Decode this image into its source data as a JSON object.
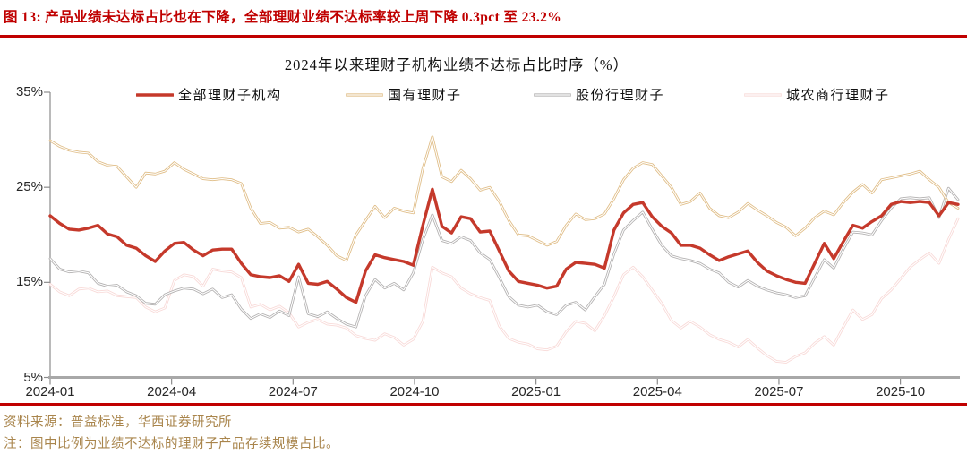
{
  "header": {
    "caption": "图 13:  产品业绩未达标占比也在下降，全部理财业绩不达标率较上周下降 0.3pct 至 23.2%"
  },
  "chart_data": {
    "type": "line",
    "title": "2024年以来理财子机构业绩不达标占比时序（%）",
    "x_tick_labels": [
      "2024-01",
      "2024-04",
      "2024-07",
      "2024-10",
      "2025-01",
      "2025-04",
      "2025-07",
      "2025-10"
    ],
    "y_tick_labels": [
      "35%",
      "25%",
      "15%",
      "5%"
    ],
    "y_tick_values": [
      35,
      25,
      15,
      5
    ],
    "ylim": [
      5,
      35
    ],
    "grid": false,
    "legend_position": "top",
    "x_unit": "week",
    "series": [
      {
        "name": "全部理财子机构",
        "color": "#c5392b",
        "line_style": "solid",
        "width": 3.4,
        "values": [
          22.0,
          21.2,
          20.6,
          20.5,
          20.7,
          21.0,
          20.1,
          19.8,
          18.9,
          18.6,
          17.8,
          17.2,
          18.3,
          19.1,
          19.2,
          18.4,
          17.8,
          18.4,
          18.5,
          18.5,
          17.0,
          15.8,
          15.6,
          15.5,
          15.7,
          15.1,
          16.9,
          14.9,
          14.8,
          15.1,
          14.3,
          13.4,
          12.9,
          16.2,
          17.9,
          17.6,
          17.4,
          17.2,
          16.8,
          21.0,
          24.8,
          20.9,
          20.2,
          21.9,
          21.7,
          20.3,
          20.4,
          18.3,
          16.2,
          15.1,
          14.9,
          14.7,
          14.4,
          14.6,
          16.4,
          17.1,
          17.0,
          16.9,
          16.5,
          20.5,
          22.3,
          23.2,
          23.4,
          21.9,
          20.9,
          20.2,
          18.9,
          18.9,
          18.6,
          17.9,
          17.3,
          17.7,
          18.0,
          18.3,
          17.1,
          16.2,
          15.7,
          15.3,
          15.0,
          14.9,
          17.0,
          19.1,
          17.5,
          19.3,
          21.0,
          20.7,
          21.4,
          22.0,
          23.2,
          23.5,
          23.4,
          23.5,
          23.4,
          22.0,
          23.4,
          23.2
        ]
      },
      {
        "name": "国有理财子",
        "color": "#dfbc85",
        "line_style": "double",
        "width": 2.8,
        "values": [
          29.9,
          29.3,
          28.9,
          28.7,
          28.6,
          27.7,
          27.3,
          27.2,
          26.1,
          25.0,
          26.5,
          26.4,
          26.7,
          27.6,
          26.9,
          26.4,
          25.9,
          25.8,
          25.9,
          25.8,
          25.4,
          22.8,
          21.2,
          21.3,
          20.7,
          20.8,
          20.3,
          20.6,
          19.8,
          18.9,
          17.8,
          17.3,
          20.0,
          21.5,
          23.0,
          21.8,
          22.8,
          22.5,
          22.3,
          27.0,
          30.3,
          26.1,
          25.6,
          26.8,
          25.9,
          24.7,
          25.0,
          23.5,
          21.5,
          20.0,
          19.9,
          19.4,
          18.9,
          19.3,
          21.0,
          22.2,
          21.6,
          21.7,
          22.2,
          23.8,
          25.8,
          27.0,
          27.6,
          27.4,
          26.2,
          25.0,
          23.2,
          23.5,
          24.4,
          22.8,
          22.0,
          21.8,
          22.4,
          23.3,
          22.6,
          22.0,
          21.3,
          20.8,
          19.9,
          20.7,
          21.8,
          22.5,
          22.1,
          23.4,
          24.5,
          25.3,
          24.4,
          25.8,
          26.0,
          26.2,
          26.4,
          26.7,
          25.8,
          25.0,
          23.4,
          22.8
        ]
      },
      {
        "name": "股份行理财子",
        "color": "#b2b0b0",
        "line_style": "double",
        "width": 2.8,
        "values": [
          17.5,
          16.4,
          16.1,
          16.2,
          16.0,
          14.9,
          14.6,
          14.7,
          14.0,
          13.6,
          12.8,
          12.7,
          13.7,
          14.1,
          14.4,
          14.3,
          13.8,
          14.3,
          13.4,
          13.7,
          12.2,
          11.2,
          11.7,
          11.3,
          12.0,
          11.5,
          15.6,
          11.7,
          11.4,
          11.9,
          11.2,
          10.6,
          10.3,
          13.6,
          15.3,
          14.4,
          14.9,
          14.2,
          16.0,
          19.5,
          22.1,
          19.4,
          19.1,
          19.8,
          19.4,
          18.1,
          17.4,
          15.5,
          13.5,
          12.6,
          12.4,
          12.6,
          11.9,
          11.6,
          12.6,
          12.9,
          12.1,
          13.5,
          14.8,
          18.0,
          20.5,
          21.5,
          22.4,
          20.6,
          18.9,
          17.8,
          17.5,
          17.3,
          17.0,
          16.4,
          16.0,
          15.0,
          14.5,
          15.2,
          14.6,
          14.2,
          13.9,
          13.7,
          13.4,
          13.6,
          15.5,
          17.4,
          16.5,
          18.5,
          20.3,
          20.2,
          20.0,
          21.5,
          22.8,
          23.8,
          23.9,
          23.8,
          23.9,
          21.8,
          24.9,
          23.7
        ]
      },
      {
        "name": "城农商行理财子",
        "color": "#f8d9d7",
        "line_style": "double",
        "width": 2.8,
        "values": [
          14.8,
          14.0,
          13.6,
          14.3,
          14.4,
          14.0,
          14.1,
          13.6,
          13.5,
          13.4,
          12.4,
          11.9,
          12.3,
          15.2,
          15.8,
          15.6,
          14.6,
          16.4,
          16.2,
          16.1,
          15.5,
          12.4,
          12.7,
          12.1,
          12.5,
          11.8,
          10.3,
          10.8,
          11.1,
          10.6,
          10.5,
          10.2,
          9.4,
          9.1,
          8.9,
          9.6,
          9.2,
          8.4,
          9.0,
          10.9,
          16.6,
          16.0,
          15.6,
          14.4,
          13.8,
          13.4,
          13.1,
          10.4,
          9.1,
          8.7,
          8.5,
          8.0,
          7.9,
          8.3,
          9.8,
          10.9,
          10.7,
          9.9,
          11.5,
          13.5,
          15.8,
          16.6,
          15.6,
          14.2,
          12.8,
          11.0,
          10.2,
          10.9,
          10.3,
          9.5,
          9.0,
          8.7,
          8.2,
          9.0,
          8.1,
          7.3,
          6.7,
          6.6,
          7.2,
          7.6,
          8.6,
          9.3,
          8.4,
          10.3,
          12.1,
          11.1,
          11.6,
          13.3,
          14.2,
          15.4,
          16.6,
          17.4,
          18.1,
          17.0,
          19.5,
          21.7
        ]
      }
    ]
  },
  "footer": {
    "source": "资料来源：普益标准，华西证券研究所",
    "note": "注：图中比例为业绩不达标的理财子产品存续规模占比。"
  },
  "colors": {
    "caption_red": "#c00000",
    "divider_red": "#c00000",
    "footer_gold": "#a9854c",
    "axis_gray": "#a8a8a8",
    "spine_gray": "#8c8c8c",
    "tick_label": "#262626"
  }
}
